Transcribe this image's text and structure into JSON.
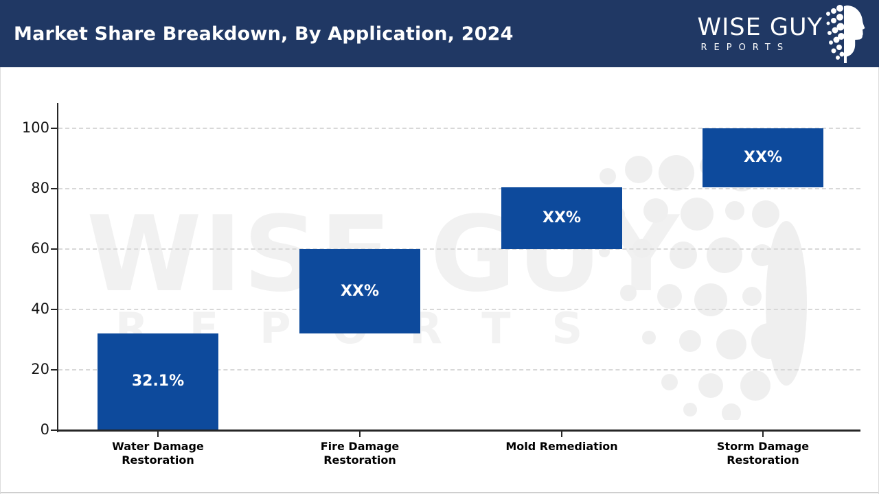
{
  "header": {
    "title": "Market Share Breakdown, By Application, 2024",
    "logo": {
      "line1": "WISE GUY",
      "line2": "REPORTS"
    }
  },
  "watermark": {
    "line1": "WISE GUY",
    "line2": "REPORTS"
  },
  "colors": {
    "header_bg": "#203864",
    "bar": "#0d4a9c",
    "grid": "#d8d8d8",
    "axis": "#262626",
    "watermark": "#f1f1f1"
  },
  "chart_data": {
    "type": "bar",
    "subtype": "waterfall",
    "title": "Market Share Breakdown, By Application, 2024",
    "categories": [
      [
        "Water Damage",
        "Restoration"
      ],
      [
        "Fire Damage",
        "Restoration"
      ],
      [
        "Mold Remediation"
      ],
      [
        "Storm Damage",
        "Restoration"
      ]
    ],
    "segments": [
      {
        "category": "Water Damage Restoration",
        "start": 0,
        "end": 32.1,
        "label": "32.1%"
      },
      {
        "category": "Fire Damage Restoration",
        "start": 32.1,
        "end": 60,
        "label": "XX%"
      },
      {
        "category": "Mold Remediation",
        "start": 60,
        "end": 80.5,
        "label": "XX%"
      },
      {
        "category": "Storm Damage Restoration",
        "start": 80.5,
        "end": 100,
        "label": "XX%"
      }
    ],
    "ylim": [
      0,
      100
    ],
    "yticks": [
      0,
      20,
      40,
      60,
      80,
      100
    ],
    "grid": true,
    "legend": null,
    "xlabel": "",
    "ylabel": ""
  }
}
